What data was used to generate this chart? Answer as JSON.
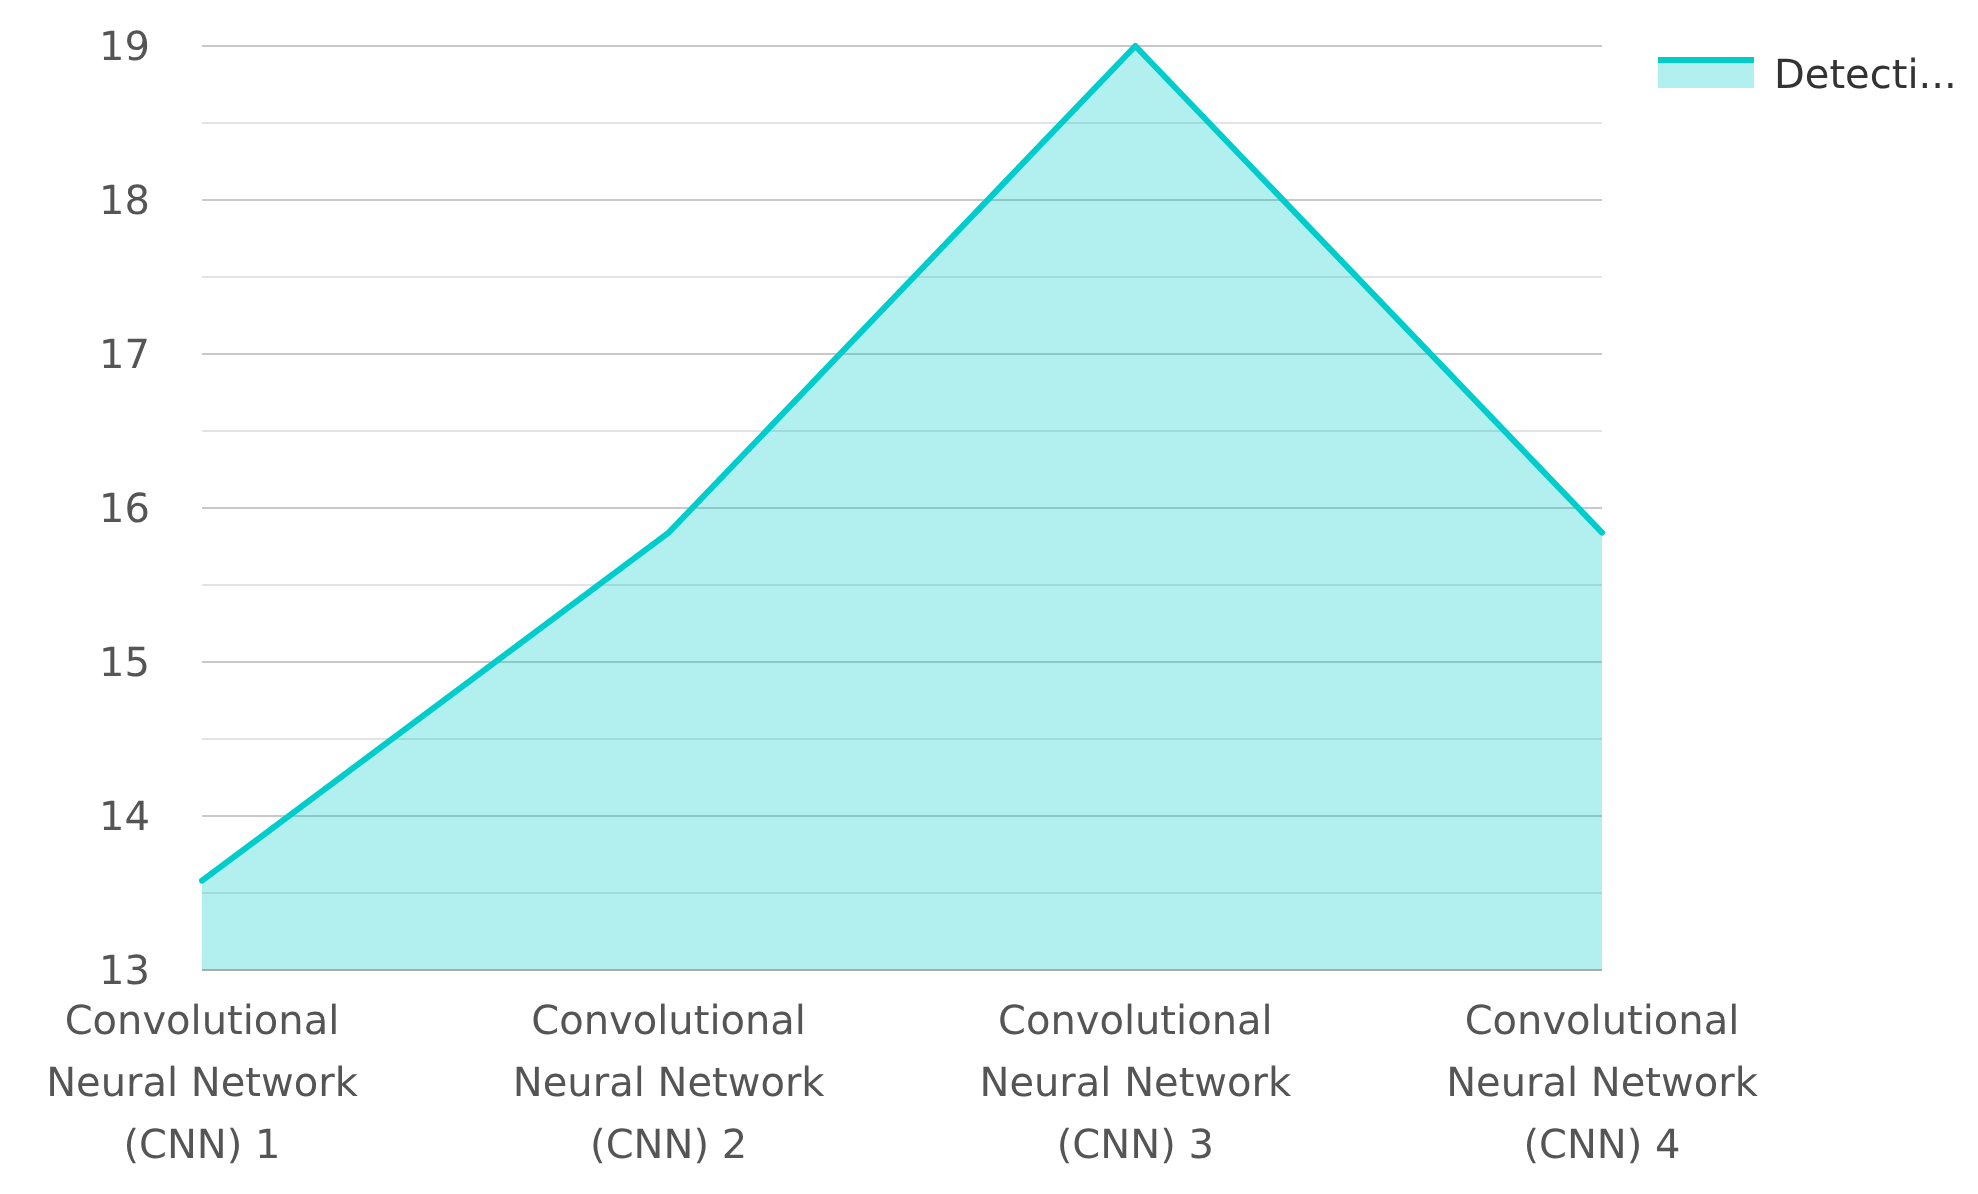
{
  "chart_data": {
    "type": "area",
    "categories": [
      "Convolutional Neural Network (CNN) 1",
      "Convolutional Neural Network (CNN) 2",
      "Convolutional Neural Network (CNN) 3",
      "Convolutional Neural Network (CNN) 4"
    ],
    "series": [
      {
        "name": "Detecti...",
        "color": "#00cccc",
        "values": [
          13.58,
          15.84,
          19,
          15.84
        ]
      }
    ],
    "ylim": [
      13,
      19
    ],
    "yticks": [
      13,
      {
        "value": 13.5,
        "label": null
      },
      14,
      {
        "value": 14.5,
        "label": null
      },
      15,
      {
        "value": 15.5,
        "label": null
      },
      16,
      {
        "value": 16.5,
        "label": null
      },
      17,
      {
        "value": 17.5,
        "label": null
      },
      18,
      {
        "value": 18.5,
        "label": null
      },
      19
    ],
    "grid": "y",
    "legend": "top right"
  }
}
